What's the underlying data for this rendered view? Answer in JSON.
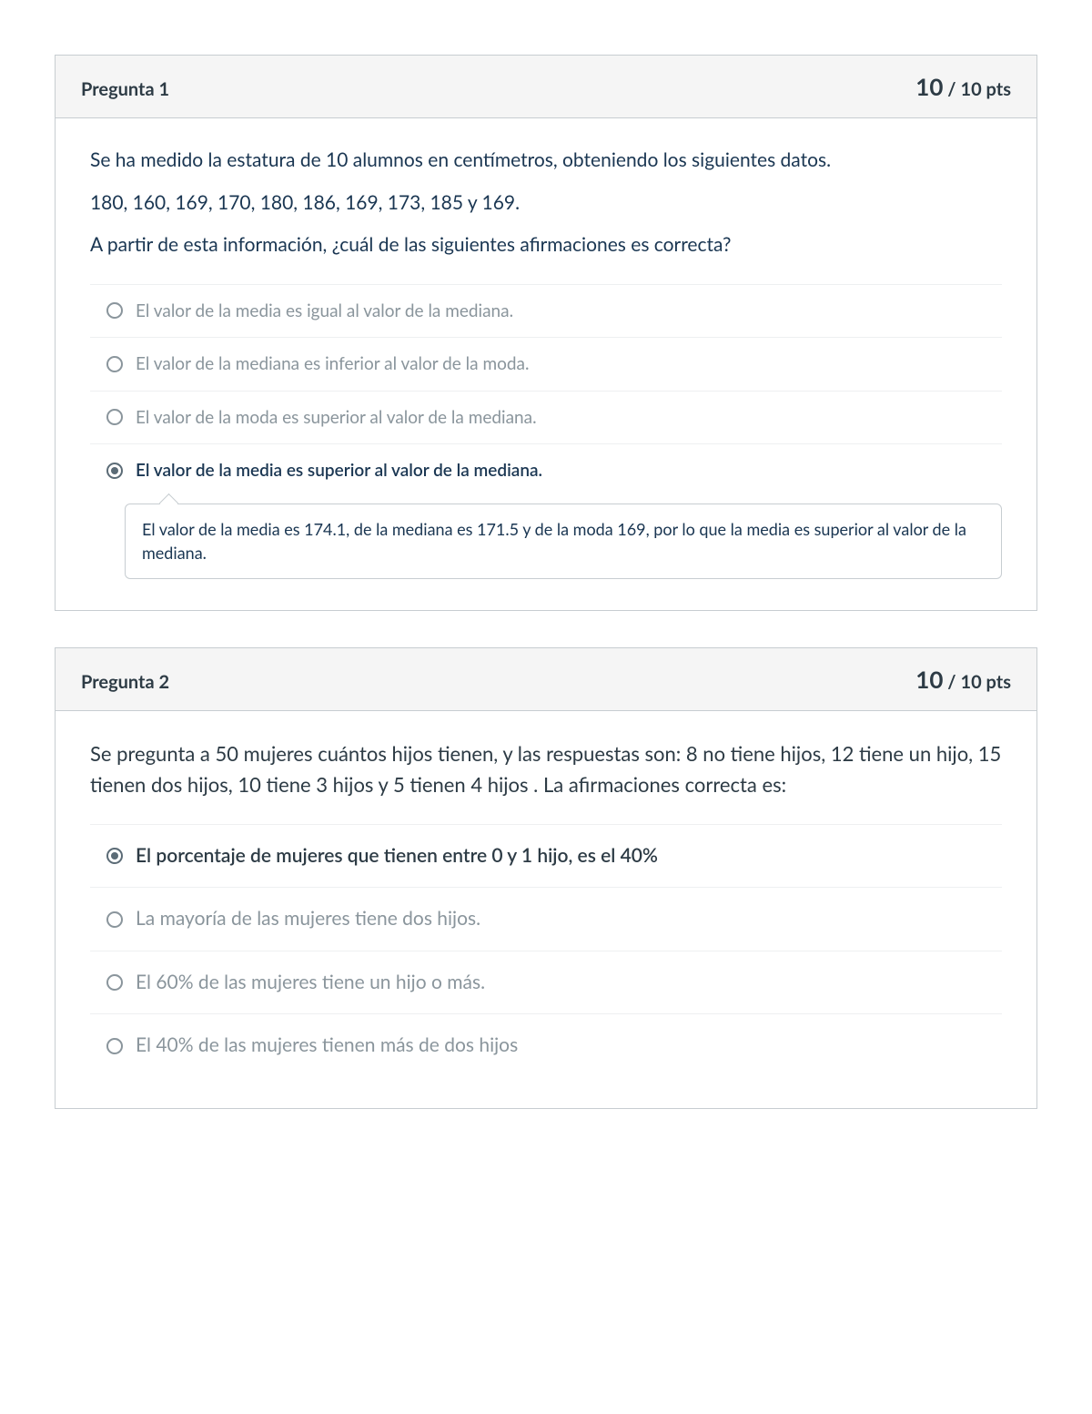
{
  "colors": {
    "border": "#c7cdd1",
    "header_bg": "#f5f5f5",
    "text_primary": "#2d3b45",
    "text_muted": "#8a959c",
    "text_navy": "#1a3652",
    "divider": "#eef0f1",
    "radio_checked": "#5b6b76"
  },
  "questions": [
    {
      "title": "Pregunta 1",
      "points_earned": "10",
      "points_sep": " / ",
      "points_total": "10 pts",
      "prompt": [
        "Se ha medido la estatura de 10 alumnos en centímetros, obteniendo los siguientes datos.",
        "180, 160, 169, 170, 180, 186, 169, 173, 185 y 169.",
        "A partir de esta información, ¿cuál de las siguientes afirmaciones es correcta?"
      ],
      "answers": [
        {
          "text": "El valor de la media es igual al valor de la mediana.",
          "selected": false
        },
        {
          "text": "El valor de la mediana es inferior al valor de la moda.",
          "selected": false
        },
        {
          "text": "El valor de la moda es superior al valor de la mediana.",
          "selected": false
        },
        {
          "text": "El valor de la media es superior al valor de la mediana.",
          "selected": true
        }
      ],
      "feedback": "El valor de la media es 174.1, de la mediana es 171.5 y de la moda 169, por lo que la media es superior al valor de la mediana."
    },
    {
      "title": "Pregunta 2",
      "points_earned": "10",
      "points_sep": " / ",
      "points_total": "10 pts",
      "prompt": [
        "Se  pregunta a 50 mujeres cuántos hijos tienen, y las respuestas son: 8 no tiene hijos, 12 tiene un hijo, 15 tienen dos hijos, 10 tiene 3 hijos y 5 tienen 4 hijos .  La afirmaciones correcta es:"
      ],
      "answers": [
        {
          "text": "El porcentaje de mujeres que tienen entre 0 y 1 hijo, es el 40%",
          "selected": true
        },
        {
          "text": "La mayoría de las mujeres tiene dos hijos.",
          "selected": false
        },
        {
          "text": "El 60% de las mujeres tiene un hijo o más.",
          "selected": false
        },
        {
          "text": "El 40% de las mujeres tienen más de dos hijos",
          "selected": false
        }
      ],
      "feedback": null
    }
  ]
}
